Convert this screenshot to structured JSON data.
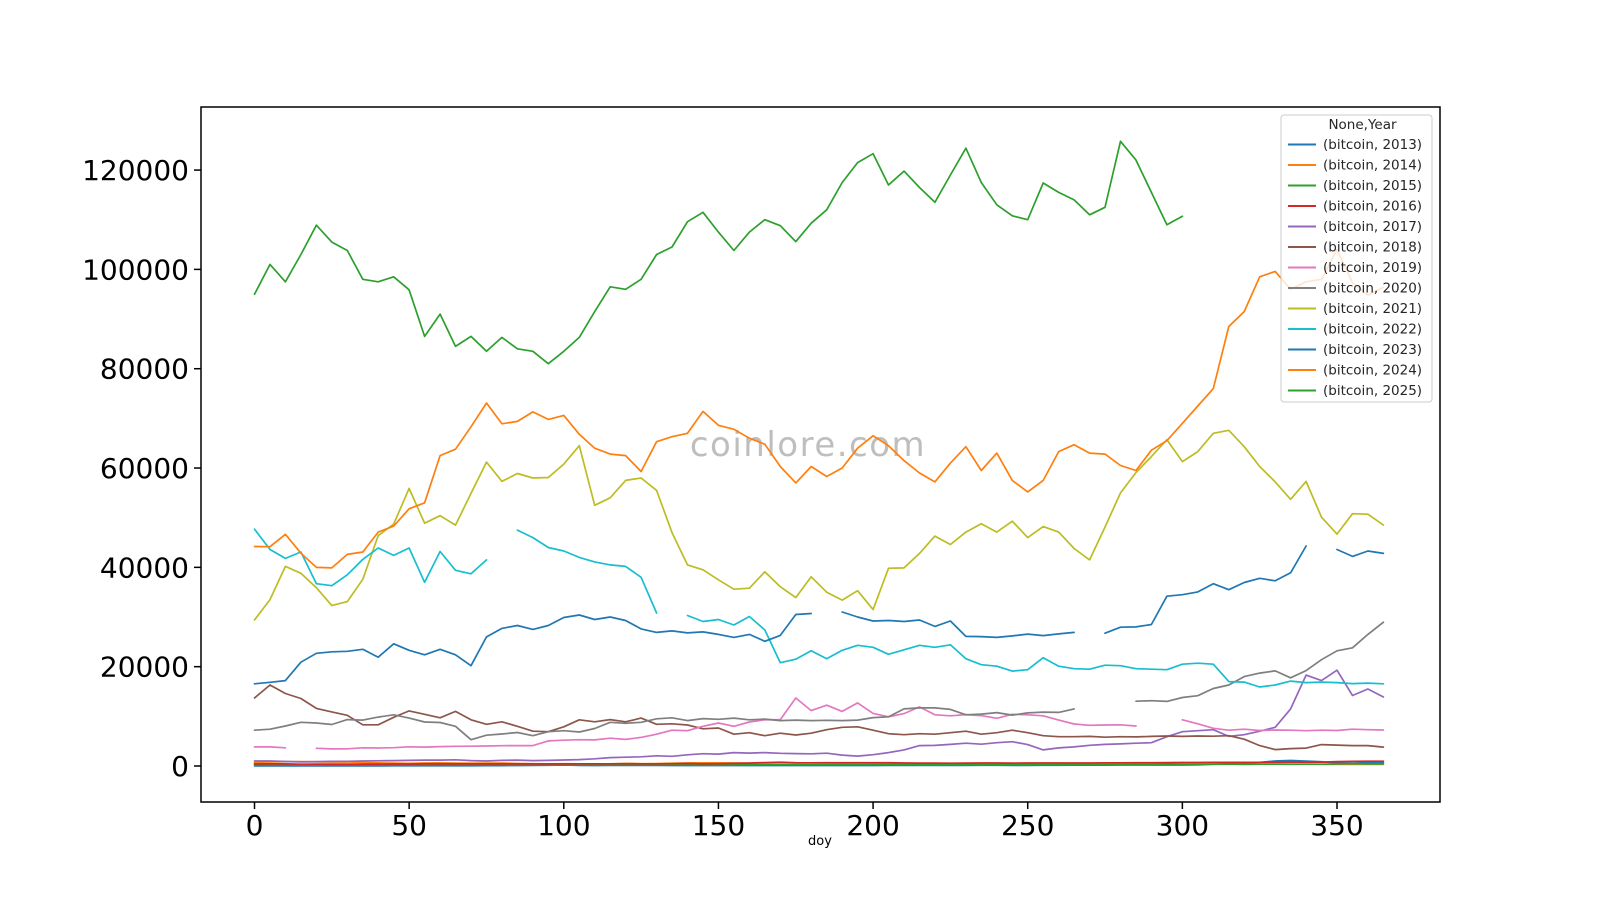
{
  "figure": {
    "background": "#ffffff",
    "axis_color": "#000000",
    "legend_border_color": "#cccccc",
    "legend_fill_opacity": 0.8
  },
  "chart_data": {
    "type": "line",
    "title": "",
    "xlabel": "doy",
    "ylabel": "",
    "watermark": "coinlore.com",
    "grid": false,
    "legend": {
      "title": "None,Year",
      "position": "upper right"
    },
    "x": {
      "start": 0,
      "step": 5,
      "end": 365
    },
    "xlim": [
      -17.3,
      383.3
    ],
    "ylim": [
      -7250,
      132700
    ],
    "xticks": [
      0,
      50,
      100,
      150,
      200,
      250,
      300,
      350
    ],
    "yticks": [
      0,
      20000,
      40000,
      60000,
      80000,
      100000,
      120000
    ],
    "series": [
      {
        "name": "(bitcoin, 2013)",
        "color": "#1f77b4",
        "values": [
          13,
          13,
          14,
          16,
          18,
          21,
          20,
          22,
          27,
          30,
          31,
          33,
          34,
          40,
          47,
          65,
          80,
          93,
          112,
          140,
          200,
          120,
          95,
          115,
          122,
          118,
          110,
          102,
          98,
          100,
          105,
          100,
          97,
          102,
          95,
          90,
          97,
          94,
          99,
          103,
          108,
          113,
          118,
          120,
          122,
          125,
          128,
          133,
          135,
          130,
          127,
          132,
          140,
          152,
          160,
          178,
          196,
          205,
          198,
          210,
          205,
          225,
          340,
          420,
          560,
          750,
          1010,
          1100,
          980,
          870,
          650,
          560,
          700,
          732
        ]
      },
      {
        "name": "(bitcoin, 2014)",
        "color": "#ff7f0e",
        "values": [
          750,
          810,
          860,
          880,
          830,
          800,
          820,
          700,
          620,
          580,
          550,
          600,
          630,
          585,
          570,
          590,
          585,
          500,
          460,
          445,
          460,
          445,
          430,
          450,
          495,
          460,
          490,
          570,
          600,
          625,
          640,
          610,
          590,
          600,
          620,
          628,
          625,
          600,
          585,
          580,
          590,
          585,
          510,
          490,
          500,
          490,
          478,
          460,
          420,
          395,
          408,
          400,
          385,
          380,
          355,
          330,
          348,
          365,
          360,
          358,
          340,
          330,
          345,
          350,
          355,
          378,
          368,
          375,
          355,
          332,
          320,
          328,
          318,
          320
        ]
      },
      {
        "name": "(bitcoin, 2015)",
        "color": "#2ca02c",
        "values": [
          315,
          285,
          275,
          210,
          178,
          252,
          237,
          225,
          222,
          235,
          242,
          227,
          255,
          254,
          280,
          295,
          252,
          246,
          236,
          228,
          236,
          226,
          228,
          237,
          235,
          234,
          240,
          238,
          233,
          228,
          222,
          240,
          250,
          263,
          258,
          285,
          270,
          282,
          277,
          258,
          280,
          282,
          262,
          230,
          228,
          228,
          235,
          230,
          233,
          236,
          239,
          238,
          237,
          246,
          248,
          255,
          265,
          276,
          288,
          315,
          322,
          340,
          386,
          395,
          328,
          360,
          355,
          350,
          357,
          365,
          420,
          455,
          425,
          430
        ]
      },
      {
        "name": "(bitcoin, 2016)",
        "color": "#d62728",
        "values": [
          434,
          432,
          448,
          365,
          382,
          390,
          380,
          372,
          388,
          393,
          408,
          420,
          416,
          418,
          417,
          418,
          420,
          423,
          416,
          419,
          429,
          448,
          452,
          446,
          454,
          450,
          447,
          453,
          530,
          450,
          468,
          530,
          580,
          680,
          765,
          670,
          638,
          660,
          662,
          655,
          662,
          658,
          600,
          575,
          582,
          571,
          575,
          605,
          610,
          575,
          602,
          610,
          606,
          608,
          612,
          637,
          635,
          660,
          655,
          680,
          700,
          712,
          720,
          730,
          745,
          742,
          750,
          765,
          780,
          790,
          895,
          920,
          960,
          963
        ]
      },
      {
        "name": "(bitcoin, 2017)",
        "color": "#9467bd",
        "values": [
          998,
          1010,
          908,
          820,
          895,
          920,
          940,
          1010,
          1050,
          1080,
          1120,
          1180,
          1190,
          1250,
          1080,
          1010,
          1120,
          1180,
          1080,
          1130,
          1210,
          1280,
          1440,
          1700,
          1780,
          1850,
          2050,
          1950,
          2250,
          2480,
          2400,
          2700,
          2600,
          2700,
          2550,
          2500,
          2450,
          2580,
          2200,
          1990,
          2280,
          2700,
          3250,
          4100,
          4150,
          4350,
          4600,
          4380,
          4700,
          4900,
          4300,
          3250,
          3650,
          3850,
          4170,
          4350,
          4450,
          4600,
          4700,
          5900,
          6900,
          7100,
          7300,
          5950,
          6300,
          7000,
          7800,
          11500,
          18300,
          17200,
          19300,
          14200,
          15500,
          13900
        ]
      },
      {
        "name": "(bitcoin, 2018)",
        "color": "#8c564b",
        "values": [
          13700,
          16300,
          14600,
          13600,
          11600,
          10900,
          10200,
          8300,
          8300,
          9800,
          11100,
          10400,
          9700,
          11000,
          9300,
          8400,
          8900,
          8000,
          7000,
          6900,
          7900,
          9300,
          8900,
          9350,
          8900,
          9650,
          8400,
          8500,
          8250,
          7500,
          7650,
          6400,
          6700,
          6100,
          6600,
          6250,
          6600,
          7300,
          7800,
          7900,
          7200,
          6500,
          6300,
          6500,
          6400,
          6700,
          7000,
          6400,
          6700,
          7200,
          6700,
          6100,
          5900,
          5900,
          5950,
          5800,
          5900,
          5850,
          5950,
          6050,
          5950,
          6050,
          6000,
          6100,
          5400,
          4100,
          3300,
          3500,
          3600,
          4300,
          4200,
          4100,
          4100,
          3800
        ]
      },
      {
        "name": "(bitcoin, 2019)",
        "color": "#e377c2",
        "values": [
          3840,
          3850,
          3660,
          null,
          3560,
          3440,
          3460,
          3660,
          3620,
          3690,
          3860,
          3800,
          3900,
          3960,
          3980,
          4030,
          4090,
          4100,
          4110,
          5050,
          5200,
          5300,
          5250,
          5600,
          5350,
          5750,
          6400,
          7200,
          7100,
          8000,
          8650,
          8000,
          8850,
          9300,
          9350,
          13700,
          11150,
          12250,
          11000,
          12700,
          10600,
          9900,
          10550,
          11900,
          10300,
          10100,
          10350,
          10150,
          9600,
          10400,
          10300,
          10100,
          9250,
          8450,
          8200,
          8250,
          8300,
          8050,
          null,
          null,
          9300,
          8500,
          7600,
          7200,
          7400,
          7150,
          7250,
          7200,
          7100,
          7200,
          7150,
          7400,
          7300,
          7250
        ]
      },
      {
        "name": "(bitcoin, 2020)",
        "color": "#7f7f7f",
        "values": [
          7200,
          7400,
          8050,
          8800,
          8650,
          8350,
          9350,
          9250,
          9850,
          10300,
          9650,
          8850,
          8750,
          8000,
          5300,
          6200,
          6450,
          6750,
          6100,
          6900,
          7100,
          6850,
          7550,
          8800,
          8600,
          8800,
          9500,
          9700,
          9150,
          9550,
          9400,
          9650,
          9300,
          9450,
          9150,
          9250,
          9150,
          9200,
          9150,
          9250,
          9750,
          9900,
          11500,
          11700,
          11700,
          11400,
          10300,
          10450,
          10750,
          10250,
          10700,
          10850,
          10800,
          11500,
          null,
          11900,
          null,
          13050,
          13150,
          13000,
          13800,
          14150,
          15600,
          16300,
          18000,
          18700,
          19150,
          17750,
          19200,
          21400,
          23200,
          23800,
          26500,
          28950
        ]
      },
      {
        "name": "(bitcoin, 2021)",
        "color": "#bcbd22",
        "values": [
          29400,
          33500,
          40200,
          38800,
          35900,
          32300,
          33100,
          37600,
          46400,
          48700,
          55900,
          48900,
          50400,
          48500,
          54900,
          61200,
          57300,
          58900,
          58000,
          58100,
          60800,
          64500,
          52500,
          54000,
          57500,
          58000,
          55500,
          47000,
          40500,
          39500,
          37500,
          35600,
          35800,
          39100,
          36100,
          33900,
          38100,
          35000,
          33400,
          35300,
          31500,
          39800,
          39900,
          42800,
          46300,
          44600,
          47100,
          48800,
          47100,
          49300,
          46000,
          48200,
          47100,
          43800,
          41500,
          48100,
          55000,
          59100,
          62300,
          65700,
          61300,
          63300,
          67000,
          67600,
          64300,
          60300,
          57200,
          53700,
          57300,
          50100,
          46700,
          50800,
          50700,
          48500
        ]
      },
      {
        "name": "(bitcoin, 2022)",
        "color": "#17becf",
        "values": [
          47700,
          43600,
          41800,
          43100,
          36700,
          36300,
          38500,
          41600,
          43900,
          42400,
          43900,
          37000,
          43200,
          39400,
          38700,
          41500,
          null,
          47500,
          46000,
          44000,
          43300,
          42000,
          41100,
          40500,
          40200,
          38000,
          30800,
          null,
          30300,
          29100,
          29500,
          28400,
          30100,
          27400,
          20800,
          21500,
          23200,
          21600,
          23300,
          24300,
          23900,
          22500,
          23400,
          24300,
          23900,
          24400,
          21600,
          20400,
          20100,
          19100,
          19400,
          21800,
          20100,
          19600,
          19500,
          20300,
          20200,
          19600,
          19500,
          19400,
          20500,
          20700,
          20500,
          17000,
          16900,
          15900,
          16300,
          17100,
          16800,
          16900,
          16800,
          16600,
          16700,
          16550
        ]
      },
      {
        "name": "(bitcoin, 2023)",
        "color": "#1f77b4",
        "values": [
          16550,
          16850,
          17200,
          20900,
          22700,
          23000,
          23100,
          23500,
          21900,
          24600,
          23300,
          22400,
          23500,
          22400,
          20200,
          26000,
          27700,
          28300,
          27500,
          28300,
          29900,
          30400,
          29500,
          30000,
          29300,
          27600,
          26900,
          27200,
          26800,
          27000,
          26500,
          25900,
          26500,
          25100,
          26300,
          30500,
          30700,
          null,
          31000,
          30000,
          29200,
          29300,
          29100,
          29400,
          28100,
          29200,
          26100,
          26050,
          25900,
          26200,
          26550,
          26250,
          26600,
          26900,
          null,
          26750,
          27950,
          28000,
          28500,
          34200,
          34500,
          35050,
          36700,
          35500,
          36950,
          37800,
          37300,
          38900,
          44300,
          null,
          43600,
          42200,
          43300,
          42800
        ]
      },
      {
        "name": "(bitcoin, 2024)",
        "color": "#ff7f0e",
        "values": [
          44200,
          44150,
          46650,
          42850,
          40000,
          39900,
          42600,
          43100,
          47100,
          48300,
          51800,
          53000,
          62500,
          63800,
          68300,
          73100,
          68900,
          69400,
          71300,
          69800,
          70600,
          66800,
          64000,
          62800,
          62500,
          59300,
          65300,
          66300,
          67000,
          71400,
          68600,
          67800,
          66000,
          64800,
          60300,
          57000,
          60300,
          58300,
          60000,
          64000,
          66500,
          64500,
          61500,
          59000,
          57200,
          61000,
          64300,
          59500,
          63000,
          57500,
          55200,
          57500,
          63300,
          64700,
          63000,
          62800,
          60500,
          59500,
          63600,
          65500,
          69000,
          72500,
          76000,
          88500,
          91500,
          98500,
          99600,
          96000,
          97500,
          98000,
          104000,
          97300,
          94800,
          96400
        ]
      },
      {
        "name": "(bitcoin, 2025)",
        "color": "#2ca02c",
        "values": [
          95000,
          101000,
          97500,
          103000,
          108900,
          105500,
          103800,
          98000,
          97500,
          98500,
          95900,
          86500,
          91000,
          84500,
          86500,
          83500,
          86300,
          84000,
          83500,
          81000,
          83500,
          86300,
          91500,
          96500,
          96000,
          98000,
          103000,
          104500,
          109600,
          111500,
          107500,
          103800,
          107500,
          110000,
          108800,
          105600,
          109300,
          112000,
          117500,
          121500,
          123300,
          117000,
          119800,
          116500,
          113500,
          119000,
          124400,
          117500,
          113000,
          110800,
          110000,
          117400,
          115500,
          114000,
          111000,
          112500,
          125800,
          122000,
          115500,
          109000,
          110700,
          null,
          null,
          null,
          null,
          null,
          null,
          null,
          null,
          null,
          null,
          null,
          null,
          null
        ]
      }
    ]
  }
}
